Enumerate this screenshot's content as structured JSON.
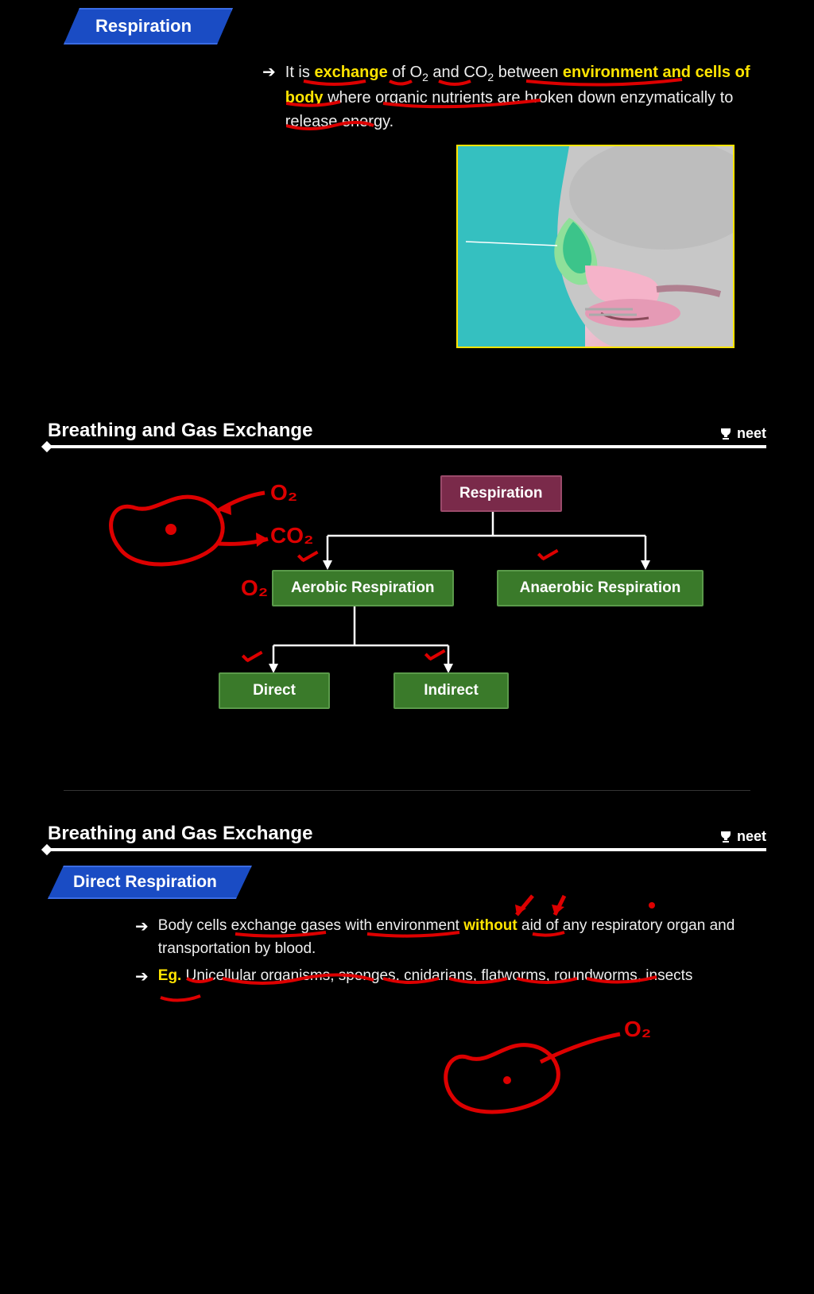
{
  "slide1": {
    "tab": "Respiration",
    "bullet_html": "It is <span class='hl-yellow'>exchange</span> of O<sub>2</sub> and CO<sub>2</sub> between <span class='hl-yellow'>environment and cells of body</span> where organic nutrients are broken down enzymatically to release energy."
  },
  "section_title": "Breathing and Gas Exchange",
  "neet": "neet",
  "flow": {
    "root": "Respiration",
    "left": "Aerobic Respiration",
    "right": "Anaerobic Respiration",
    "sub_left": "Direct",
    "sub_right": "Indirect",
    "colors": {
      "root": "#7a2a4a",
      "branch": "#3a7a2a"
    }
  },
  "slide3": {
    "tab": "Direct Respiration",
    "bullet1_html": "Body cells exchange gases with environment <span class='hl-yellow'>without</span> aid of any respiratory organ and transportation by blood.",
    "bullet2_html": "<span class='hl-yellow'>Eg.</span> Unicellular organisms, sponges, cnidarians, flatworms, roundworms, insects"
  },
  "annotations": {
    "o2_top": "O₂",
    "co2_top": "CO₂",
    "o2_mid": "O₂",
    "o2_bot": "O₂",
    "red": "#d00000"
  }
}
